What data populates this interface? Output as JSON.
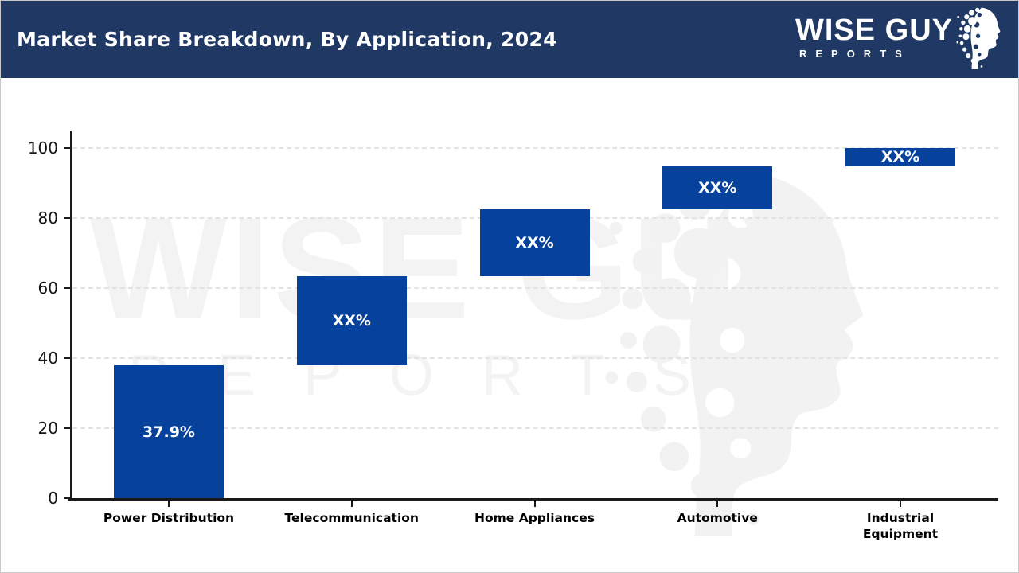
{
  "header": {
    "title": "Market Share Breakdown, By Application, 2024",
    "logo": {
      "wordmark": "WISE GUY",
      "subtext": "REPORTS"
    }
  },
  "watermark": {
    "line1": "WISE GUY",
    "line2": "REPORTS"
  },
  "chart_data": {
    "type": "bar",
    "subtype": "waterfall",
    "title": "Market Share Breakdown, By Application, 2024",
    "categories": [
      "Power Distribution",
      "Telecommunication",
      "Home Appliances",
      "Automotive",
      "Industrial\nEquipment"
    ],
    "series": [
      {
        "name": "Market share (%)",
        "segments": [
          {
            "category": "Power Distribution",
            "start": 0,
            "end": 37.9,
            "label": "37.9%"
          },
          {
            "category": "Telecommunication",
            "start": 37.9,
            "end": 63.5,
            "label": "XX%"
          },
          {
            "category": "Home Appliances",
            "start": 63.5,
            "end": 82.5,
            "label": "XX%"
          },
          {
            "category": "Automotive",
            "start": 82.5,
            "end": 94.8,
            "label": "XX%"
          },
          {
            "category": "Industrial Equipment",
            "start": 94.8,
            "end": 100,
            "label": "XX%"
          }
        ]
      }
    ],
    "ylim": [
      0,
      105
    ],
    "yticks": [
      0,
      20,
      40,
      60,
      80,
      100
    ],
    "grid": "horizontal-dashed",
    "legend": "none",
    "colors": {
      "bar": "#06419c",
      "bar_label": "#ffffff",
      "axis": "#1a1a1a",
      "gridline": "#e3e3e3"
    }
  },
  "colors": {
    "header_bg": "#203864",
    "page_bg": "#ffffff",
    "watermark": "#f3f3f3"
  }
}
